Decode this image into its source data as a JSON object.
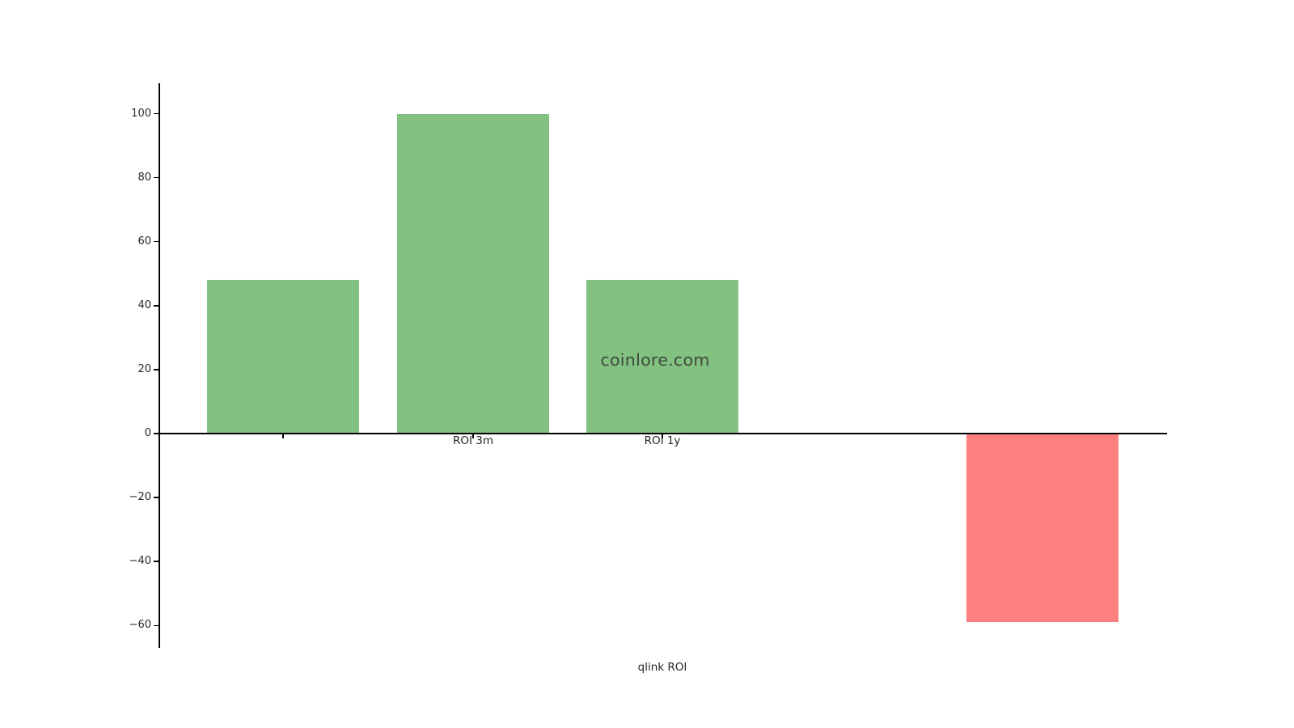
{
  "page": {
    "background_color": "#ffffff"
  },
  "chart_data": {
    "type": "bar",
    "title": "",
    "xlabel": "qlink ROI",
    "ylabel": "",
    "watermark": "coinlore.com",
    "categories": [
      "",
      "ROI 3m",
      "ROI 1y",
      ""
    ],
    "values": [
      48,
      100,
      48,
      -59
    ],
    "bar_colors": [
      "#82c180",
      "#82c180",
      "#82c180",
      "#fd8080"
    ],
    "x_tick_visible": [
      true,
      true,
      true,
      false
    ],
    "y_ticks": [
      100,
      80,
      60,
      40,
      20,
      0,
      -20,
      -40,
      -60
    ],
    "y_tick_labels": [
      "100",
      "80",
      "60",
      "40",
      "20",
      "0",
      "−20",
      "−40",
      "−60"
    ],
    "ylim": [
      -67,
      110
    ],
    "grid": false,
    "legend": null,
    "colors": {
      "positive": "#82c180",
      "negative": "#fd8080",
      "axis": "#000000",
      "tick_label": "#262626",
      "watermark": "#333333"
    }
  }
}
